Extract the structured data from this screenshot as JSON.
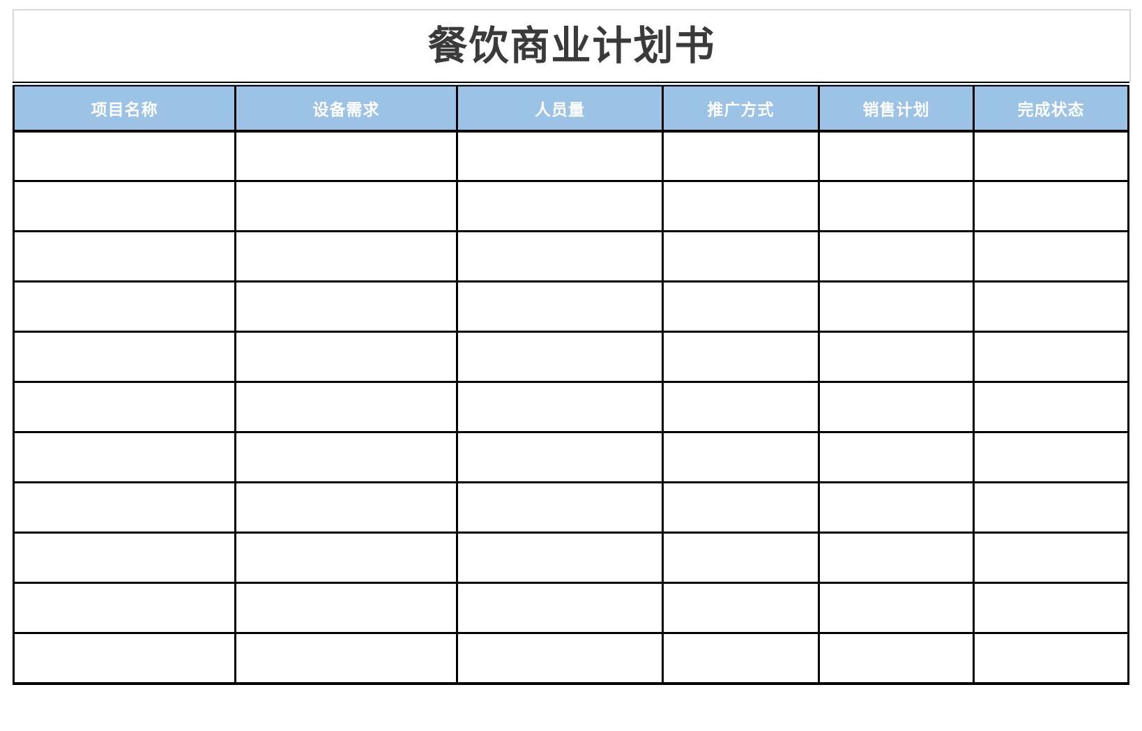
{
  "title": "餐饮商业计划书",
  "table": {
    "headers": [
      "项目名称",
      "设备需求",
      "人员量",
      "推广方式",
      "销售计划",
      "完成状态"
    ],
    "row_count": 11,
    "column_count": 6,
    "empty_cell": ""
  },
  "colors": {
    "header_bg": "#9CC3E5",
    "header_text": "#FFFFFF",
    "grid": "#000000",
    "title_text": "#3A3A3A",
    "title_border": "#D9D9D9",
    "page_bg": "#FFFFFF"
  }
}
